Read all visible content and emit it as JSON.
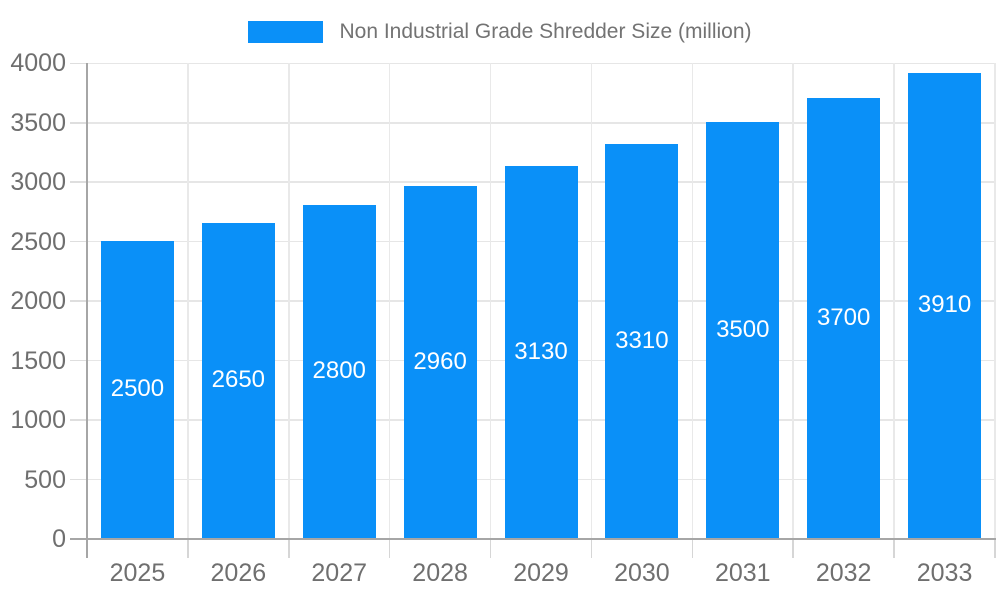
{
  "chart_data": {
    "type": "bar",
    "title": "",
    "legend": "Non Industrial Grade Shredder Size (million)",
    "legend_position": "top",
    "categories": [
      "2025",
      "2026",
      "2027",
      "2028",
      "2029",
      "2030",
      "2031",
      "2032",
      "2033"
    ],
    "series": [
      {
        "name": "Non Industrial Grade Shredder Size (million)",
        "values": [
          2500,
          2650,
          2800,
          2960,
          3130,
          3310,
          3500,
          3700,
          3910
        ]
      }
    ],
    "bar_value_labels": [
      "2500",
      "2650",
      "2800",
      "2960",
      "3130",
      "3310",
      "3500",
      "3700",
      "3910"
    ],
    "xlabel": "",
    "ylabel": "",
    "ylim": [
      0,
      4000
    ],
    "ytick_interval": 500,
    "ytick_labels": [
      "0",
      "500",
      "1000",
      "1500",
      "2000",
      "2500",
      "3000",
      "3500",
      "4000"
    ],
    "grid": "on",
    "value_labels_position": "center-inside",
    "colors": {
      "bar": "#0a90f8",
      "axis_text": "#6f6f6f",
      "value_label_text": "#ffffff",
      "legend_text": "#737373",
      "grid_line": "#e6e6e6",
      "axis_line": "#a6a6a6",
      "background": "#ffffff"
    }
  }
}
